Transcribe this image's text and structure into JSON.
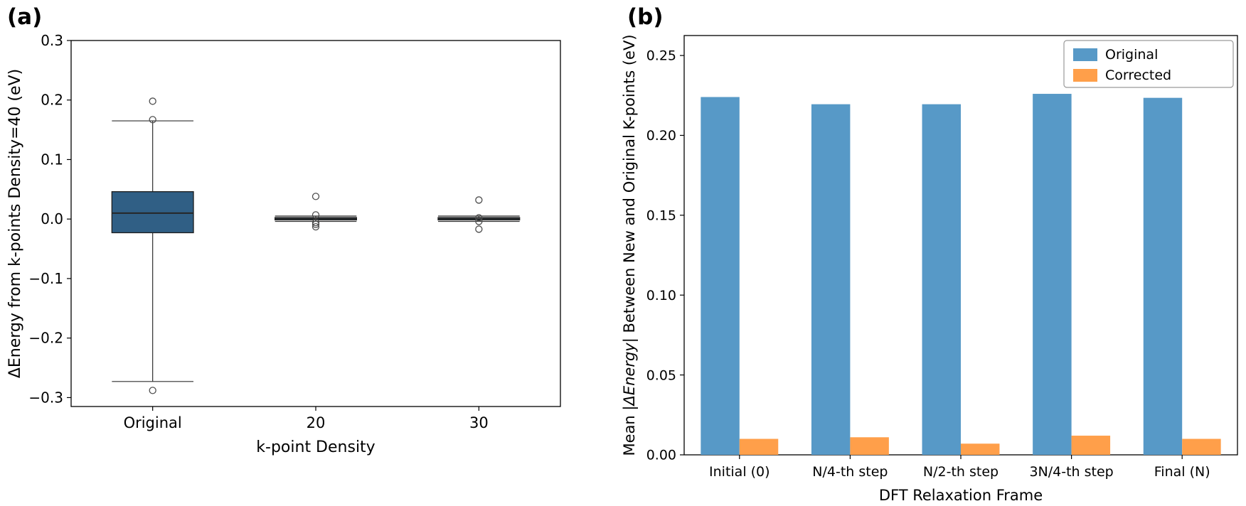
{
  "figure": {
    "background": "#ffffff",
    "panels": {
      "a": {
        "label": "(a)"
      },
      "b": {
        "label": "(b)"
      }
    }
  },
  "chart_data": [
    {
      "type": "boxplot",
      "panel": "a",
      "title": "",
      "xlabel": "k-point Density",
      "ylabel": "ΔEnergy from k-points Density=40 (eV)",
      "categories": [
        "Original",
        "20",
        "30"
      ],
      "ylim": [
        -0.315,
        0.3
      ],
      "yticks": [
        -0.3,
        -0.2,
        -0.1,
        0.0,
        0.1,
        0.2,
        0.3
      ],
      "ytick_labels": [
        "−0.3",
        "−0.2",
        "−0.1",
        "0.0",
        "0.1",
        "0.2",
        "0.3"
      ],
      "grid": false,
      "box_fill": "#305f85",
      "boxes": [
        {
          "category": "Original",
          "whisker_low": -0.273,
          "q1": -0.023,
          "median": 0.01,
          "q3": 0.046,
          "whisker_high": 0.165,
          "outliers": [
            0.198,
            0.167,
            -0.288
          ]
        },
        {
          "category": "20",
          "whisker_low": -0.004,
          "q1": -0.0015,
          "median": 0.0005,
          "q3": 0.0025,
          "whisker_high": 0.005,
          "outliers": [
            0.038,
            0.007,
            -0.006,
            -0.009,
            -0.013
          ]
        },
        {
          "category": "30",
          "whisker_low": -0.004,
          "q1": -0.0015,
          "median": 0.0005,
          "q3": 0.0025,
          "whisker_high": 0.005,
          "outliers": [
            0.032,
            0.002,
            -0.004,
            -0.017
          ]
        }
      ]
    },
    {
      "type": "bar",
      "panel": "b",
      "title": "",
      "xlabel": "DFT Relaxation Frame",
      "ylabel": "Mean |ΔEnergy| Between New and Original K-points (eV)",
      "ylabel_segments": [
        {
          "text": "Mean |",
          "italic": false
        },
        {
          "text": "ΔEnergy",
          "italic": true
        },
        {
          "text": "| Between New and Original K-points (eV)",
          "italic": false
        }
      ],
      "categories": [
        "Initial (0)",
        "N/4-th step",
        "N/2-th step",
        "3N/4-th step",
        "Final (N)"
      ],
      "series": [
        {
          "name": "Original",
          "color": "#5799c7",
          "values": [
            0.224,
            0.2195,
            0.2195,
            0.226,
            0.2235
          ]
        },
        {
          "name": "Corrected",
          "color": "#ff9f4a",
          "values": [
            0.01,
            0.011,
            0.007,
            0.012,
            0.01
          ]
        }
      ],
      "ylim": [
        0,
        0.2625
      ],
      "yticks": [
        0.0,
        0.05,
        0.1,
        0.15,
        0.2,
        0.25
      ],
      "ytick_labels": [
        "0.00",
        "0.05",
        "0.10",
        "0.15",
        "0.20",
        "0.25"
      ],
      "grid": false,
      "legend": {
        "position": "upper right",
        "entries": [
          "Original",
          "Corrected"
        ]
      }
    }
  ]
}
